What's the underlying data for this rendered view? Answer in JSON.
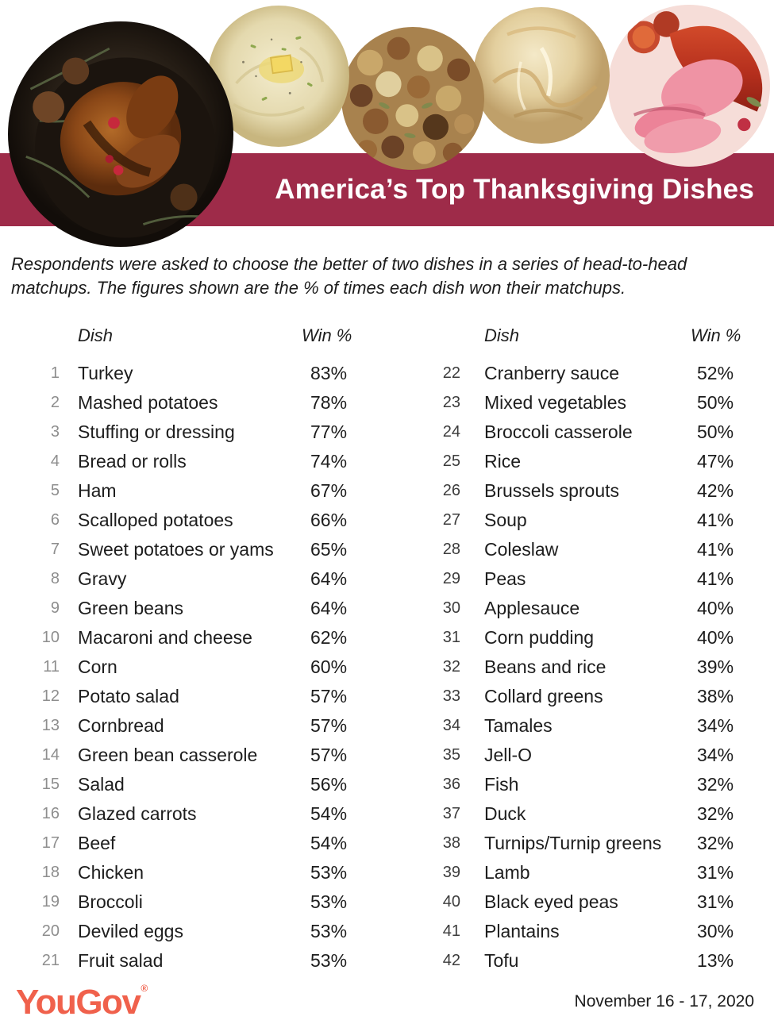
{
  "banner": {
    "title": "America’s Top Thanksgiving Dishes",
    "bg_color": "#9e2b49",
    "text_color": "#ffffff"
  },
  "photos": [
    {
      "label": "roast turkey"
    },
    {
      "label": "mashed potatoes"
    },
    {
      "label": "stuffing"
    },
    {
      "label": "bread loaf"
    },
    {
      "label": "glazed ham"
    }
  ],
  "description": {
    "line1": "Respondents were asked to choose the better of two dishes in a series of head-to-head",
    "line2": "matchups. The figures shown are the % of times each dish won their matchups."
  },
  "table": {
    "headers": {
      "dish": "Dish",
      "win": "Win %"
    },
    "split": 21
  },
  "chart_data": {
    "type": "table",
    "title": "America’s Top Thanksgiving Dishes",
    "columns": [
      "Rank",
      "Dish",
      "Win %"
    ],
    "unit": "% of matchups won",
    "rows": [
      [
        1,
        "Turkey",
        83
      ],
      [
        2,
        "Mashed potatoes",
        78
      ],
      [
        3,
        "Stuffing or dressing",
        77
      ],
      [
        4,
        "Bread or rolls",
        74
      ],
      [
        5,
        "Ham",
        67
      ],
      [
        6,
        "Scalloped potatoes",
        66
      ],
      [
        7,
        "Sweet potatoes or yams",
        65
      ],
      [
        8,
        "Gravy",
        64
      ],
      [
        9,
        "Green beans",
        64
      ],
      [
        10,
        "Macaroni and cheese",
        62
      ],
      [
        11,
        "Corn",
        60
      ],
      [
        12,
        "Potato salad",
        57
      ],
      [
        13,
        "Cornbread",
        57
      ],
      [
        14,
        "Green bean casserole",
        57
      ],
      [
        15,
        "Salad",
        56
      ],
      [
        16,
        "Glazed carrots",
        54
      ],
      [
        17,
        "Beef",
        54
      ],
      [
        18,
        "Chicken",
        53
      ],
      [
        19,
        "Broccoli",
        53
      ],
      [
        20,
        "Deviled eggs",
        53
      ],
      [
        21,
        "Fruit salad",
        53
      ],
      [
        22,
        "Cranberry sauce",
        52
      ],
      [
        23,
        "Mixed vegetables",
        50
      ],
      [
        24,
        "Broccoli casserole",
        50
      ],
      [
        25,
        "Rice",
        47
      ],
      [
        26,
        "Brussels sprouts",
        42
      ],
      [
        27,
        "Soup",
        41
      ],
      [
        28,
        "Coleslaw",
        41
      ],
      [
        29,
        "Peas",
        41
      ],
      [
        30,
        "Applesauce",
        40
      ],
      [
        31,
        "Corn pudding",
        40
      ],
      [
        32,
        "Beans and rice",
        39
      ],
      [
        33,
        "Collard greens",
        38
      ],
      [
        34,
        "Tamales",
        34
      ],
      [
        35,
        "Jell-O",
        34
      ],
      [
        36,
        "Fish",
        32
      ],
      [
        37,
        "Duck",
        32
      ],
      [
        38,
        "Turnips/Turnip greens",
        32
      ],
      [
        39,
        "Lamb",
        31
      ],
      [
        40,
        "Black eyed peas",
        31
      ],
      [
        41,
        "Plantains",
        30
      ],
      [
        42,
        "Tofu",
        13
      ]
    ]
  },
  "footer": {
    "logo": "YouGov",
    "registered_mark": "®",
    "logo_color": "#f0614c",
    "date": "November 16 - 17, 2020"
  }
}
